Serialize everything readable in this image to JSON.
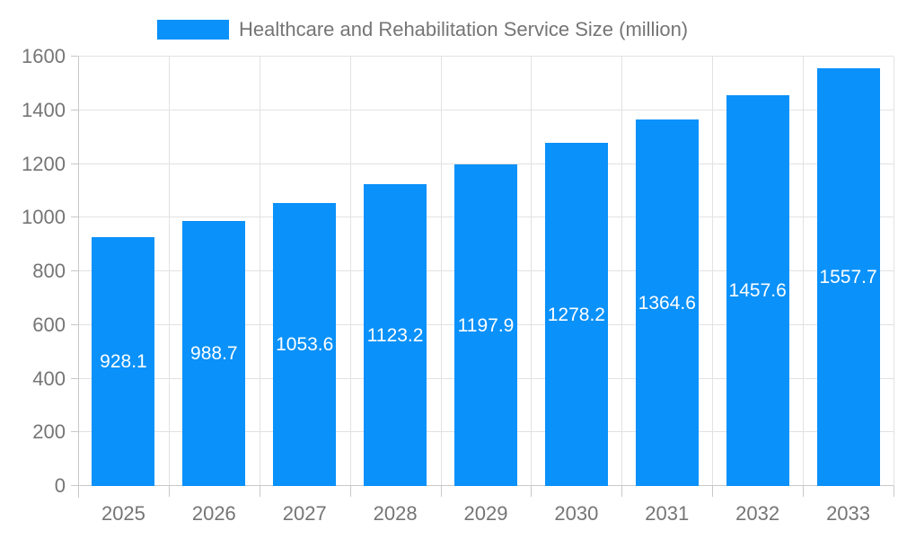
{
  "legend": {
    "label": "Healthcare and Rehabilitation Service Size (million)"
  },
  "chart_data": {
    "type": "bar",
    "title": "Healthcare and Rehabilitation Service Size (million)",
    "categories": [
      "2025",
      "2026",
      "2027",
      "2028",
      "2029",
      "2030",
      "2031",
      "2032",
      "2033"
    ],
    "values": [
      928.1,
      988.7,
      1053.6,
      1123.2,
      1197.9,
      1278.2,
      1364.6,
      1457.6,
      1557.7
    ],
    "value_labels": [
      "928.1",
      "988.7",
      "1053.6",
      "1123.2",
      "1197.9",
      "1278.2",
      "1364.6",
      "1457.6",
      "1557.7"
    ],
    "xlabel": "",
    "ylabel": "",
    "ylim": [
      0,
      1600
    ],
    "yticks": [
      0,
      200,
      400,
      600,
      800,
      1000,
      1200,
      1400,
      1600
    ],
    "grid": true,
    "legend_position": "top-center",
    "bar_value_label_position": "inside-center",
    "colors": {
      "bar": "#0a91fa",
      "bar_label": "#ffffff",
      "axis_text": "#757575",
      "grid_line": "#e2e2e2",
      "tick_line": "#c8c8c8",
      "axis_line": "#c8c8c8",
      "background": "#ffffff"
    }
  }
}
